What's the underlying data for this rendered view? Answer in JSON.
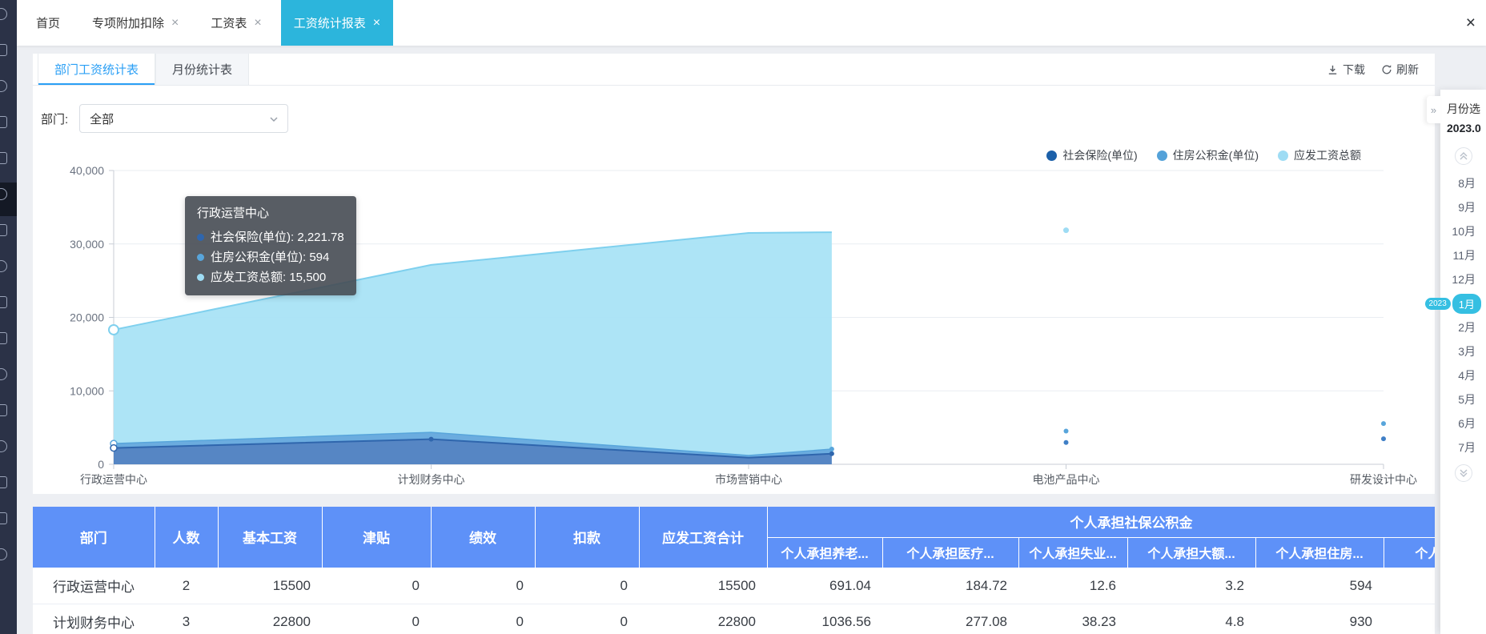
{
  "window": {
    "close_label": "×"
  },
  "topbar": {
    "tabs": [
      {
        "label": "首页",
        "closable": false,
        "active": false
      },
      {
        "label": "专项附加扣除",
        "closable": true,
        "active": false
      },
      {
        "label": "工资表",
        "closable": true,
        "active": false
      },
      {
        "label": "工资统计报表",
        "closable": true,
        "active": true
      }
    ]
  },
  "subtabs": [
    {
      "label": "部门工资统计表",
      "active": true
    },
    {
      "label": "月份统计表",
      "active": false
    }
  ],
  "toolbar": {
    "download": "下载",
    "refresh": "刷新"
  },
  "filter": {
    "label": "部门:",
    "value": "全部"
  },
  "legend": [
    {
      "label": "社会保险(单位)",
      "color": "#1c60a9"
    },
    {
      "label": "住房公积金(单位)",
      "color": "#54a2d9"
    },
    {
      "label": "应发工资总额",
      "color": "#9edcf4"
    }
  ],
  "chart_data": {
    "type": "area",
    "stacked": true,
    "title": "",
    "categories": [
      "行政运营中心",
      "计划财务中心",
      "市场营销中心",
      "电池产品中心",
      "研发设计中心"
    ],
    "series": [
      {
        "name": "社会保险(单位)",
        "color": "#2f66ad",
        "fill": "#4d80c1",
        "values": [
          2221.78,
          3420,
          900,
          2970,
          3480
        ]
      },
      {
        "name": "住房公积金(单位)",
        "color": "#58a5db",
        "fill": "#63a8dd",
        "values": [
          594,
          930,
          300,
          1550,
          2070
        ]
      },
      {
        "name": "应发工资总额",
        "color": "#9edcf4",
        "fill": "#a9e3f6",
        "values": [
          15500,
          22800,
          30300,
          27350,
          null
        ]
      }
    ],
    "ylim": [
      0,
      40000
    ],
    "yticks": [
      "0",
      "10,000",
      "20,000",
      "30,000",
      "40,000"
    ],
    "legend_position": "top-right",
    "grid": true
  },
  "tooltip": {
    "title": "行政运营中心",
    "rows": [
      {
        "label": "社会保险(单位)",
        "value": "2,221.78",
        "color": "#2f66ad"
      },
      {
        "label": "住房公积金(单位)",
        "value": "594",
        "color": "#58a5db"
      },
      {
        "label": "应发工资总额",
        "value": "15,500",
        "color": "#9edcf4"
      }
    ]
  },
  "month_panel": {
    "title": "月份选",
    "subtitle": "2023.0",
    "collapse_icon": "»",
    "year_badge": "2023",
    "active": "1月",
    "months": [
      "8月",
      "9月",
      "10月",
      "11月",
      "12月",
      "1月",
      "2月",
      "3月",
      "4月",
      "5月",
      "6月",
      "7月"
    ]
  },
  "table": {
    "plain_headers": [
      "部门",
      "人数",
      "基本工资",
      "津贴",
      "绩效",
      "扣款",
      "应发工资合计"
    ],
    "group_header": "个人承担社保公积金",
    "group_subheaders": [
      "个人承担养老...",
      "个人承担医疗...",
      "个人承担失业...",
      "个人承担大额...",
      "个人承担住房...",
      "个人承..."
    ],
    "rows": [
      [
        "行政运营中心",
        "2",
        "15500",
        "0",
        "0",
        "0",
        "15500",
        "691.04",
        "184.72",
        "12.6",
        "3.2",
        "594",
        ""
      ],
      [
        "计划财务中心",
        "3",
        "22800",
        "0",
        "0",
        "0",
        "22800",
        "1036.56",
        "277.08",
        "38.23",
        "4.8",
        "930",
        ""
      ]
    ]
  },
  "colors": {
    "accent_cyan": "#2cb5dc",
    "subtab_active_blue": "#2a9ff5",
    "table_header_blue": "#5e91f8",
    "month_active_cyan": "#35bfe2"
  }
}
